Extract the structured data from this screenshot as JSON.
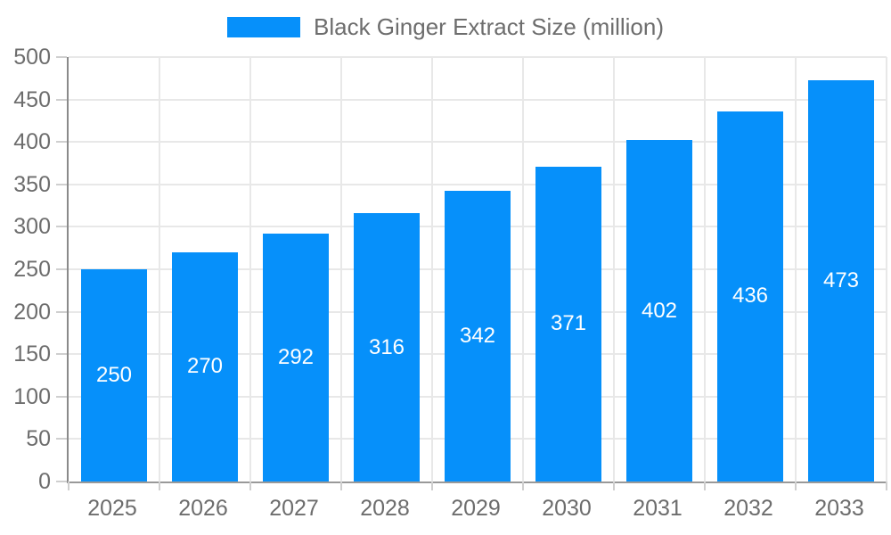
{
  "legend": {
    "label": "Black Ginger Extract Size (million)"
  },
  "colors": {
    "bar": "#0690FA",
    "value_label_text": "#FFFFFF",
    "axis_text": "#6D6D6D",
    "axis_line": "#8A8A8A",
    "gridline": "#E8E8E8"
  },
  "chart_data": {
    "type": "bar",
    "title": "Black Ginger Extract Size (million)",
    "categories": [
      "2025",
      "2026",
      "2027",
      "2028",
      "2029",
      "2030",
      "2031",
      "2032",
      "2033"
    ],
    "values": [
      250,
      270,
      292,
      316,
      342,
      371,
      402,
      436,
      473
    ],
    "series": [
      {
        "name": "Black Ginger Extract Size (million)",
        "values": [
          250,
          270,
          292,
          316,
          342,
          371,
          402,
          436,
          473
        ]
      }
    ],
    "xlabel": "",
    "ylabel": "",
    "ylim": [
      0,
      500
    ],
    "ytick_interval": 50,
    "grid": true,
    "legend_position": "top-center",
    "value_labels": "centered-inside-bars"
  }
}
